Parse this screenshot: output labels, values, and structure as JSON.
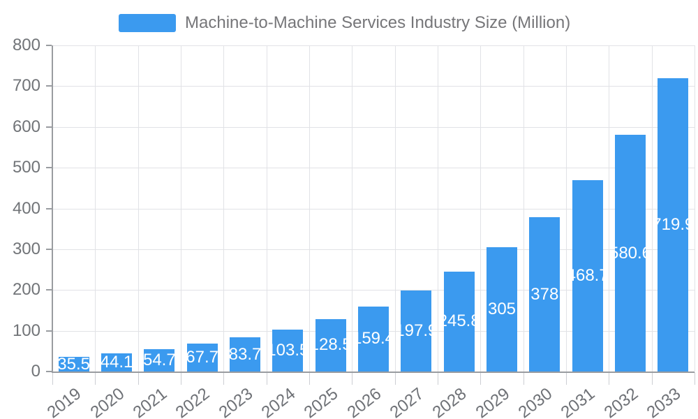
{
  "legend": {
    "label": "Machine-to-Machine Services Industry Size (Million)"
  },
  "colors": {
    "bar": "#3B9AEF",
    "axis_line": "#999CA0",
    "gridline": "#E1E2E6",
    "x_tick": "#CCCED3",
    "axis_text": "#717478",
    "legend_text": "#767679",
    "value_label": "#FFFFFF",
    "background": "#FFFFFF"
  },
  "chart_data": {
    "type": "bar",
    "title": "Machine-to-Machine Services Industry Size (Million)",
    "categories": [
      "2019",
      "2020",
      "2021",
      "2022",
      "2023",
      "2024",
      "2025",
      "2026",
      "2027",
      "2028",
      "2029",
      "2030",
      "2031",
      "2032",
      "2033"
    ],
    "values": [
      35.5,
      44.1,
      54.7,
      67.7,
      83.7,
      103.5,
      128.5,
      159.4,
      197.9,
      245.8,
      305,
      378,
      468.7,
      580.6,
      719.9
    ],
    "value_labels": [
      "35.5",
      "44.1",
      "54.7",
      "67.7",
      "83.7",
      "103.5",
      "128.5",
      "159.4",
      "197.9",
      "245.8",
      "305",
      "378",
      "468.7",
      "580.6",
      "719.9"
    ],
    "xlabel": "",
    "ylabel": "",
    "ylim": [
      0,
      800
    ],
    "ytick_interval": 100,
    "ytick_labels": [
      "0",
      "100",
      "200",
      "300",
      "400",
      "500",
      "600",
      "700",
      "800"
    ],
    "grid": true,
    "legend_position": "top",
    "value_label_position": "inside-center",
    "x_label_rotation_deg": -38
  }
}
